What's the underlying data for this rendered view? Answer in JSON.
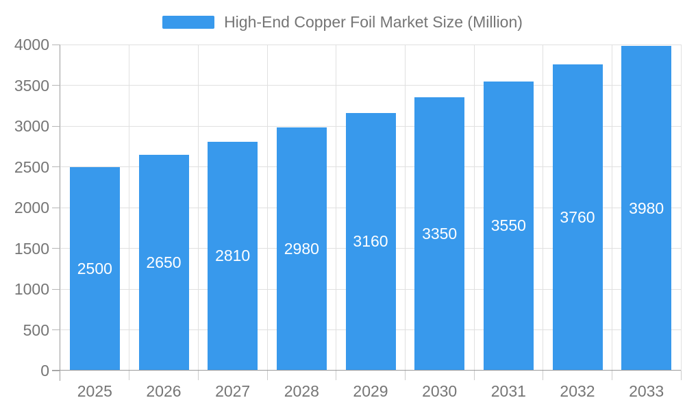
{
  "legend": {
    "label": "High-End Copper Foil Market Size (Million)"
  },
  "chart_data": {
    "type": "bar",
    "title": "High-End Copper Foil Market Size (Million)",
    "categories": [
      "2025",
      "2026",
      "2027",
      "2028",
      "2029",
      "2030",
      "2031",
      "2032",
      "2033"
    ],
    "values": [
      2500,
      2650,
      2810,
      2980,
      3160,
      3350,
      3550,
      3760,
      3980
    ],
    "xlabel": "",
    "ylabel": "",
    "ylim": [
      0,
      4000
    ],
    "ytick_step": 500,
    "ytick_labels": [
      "0",
      "500",
      "1000",
      "1500",
      "2000",
      "2500",
      "3000",
      "3500",
      "4000"
    ],
    "grid": true,
    "legend_position": "top-center",
    "bar_labels_inside": true
  },
  "colors": {
    "bar": "#3899EC",
    "bar_label": "#FFFFFF",
    "axis_label": "#757575",
    "axis_line": "#999999",
    "gridline": "#E0E0E0",
    "tick": "#CCCCCC",
    "background": "#FFFFFF"
  }
}
